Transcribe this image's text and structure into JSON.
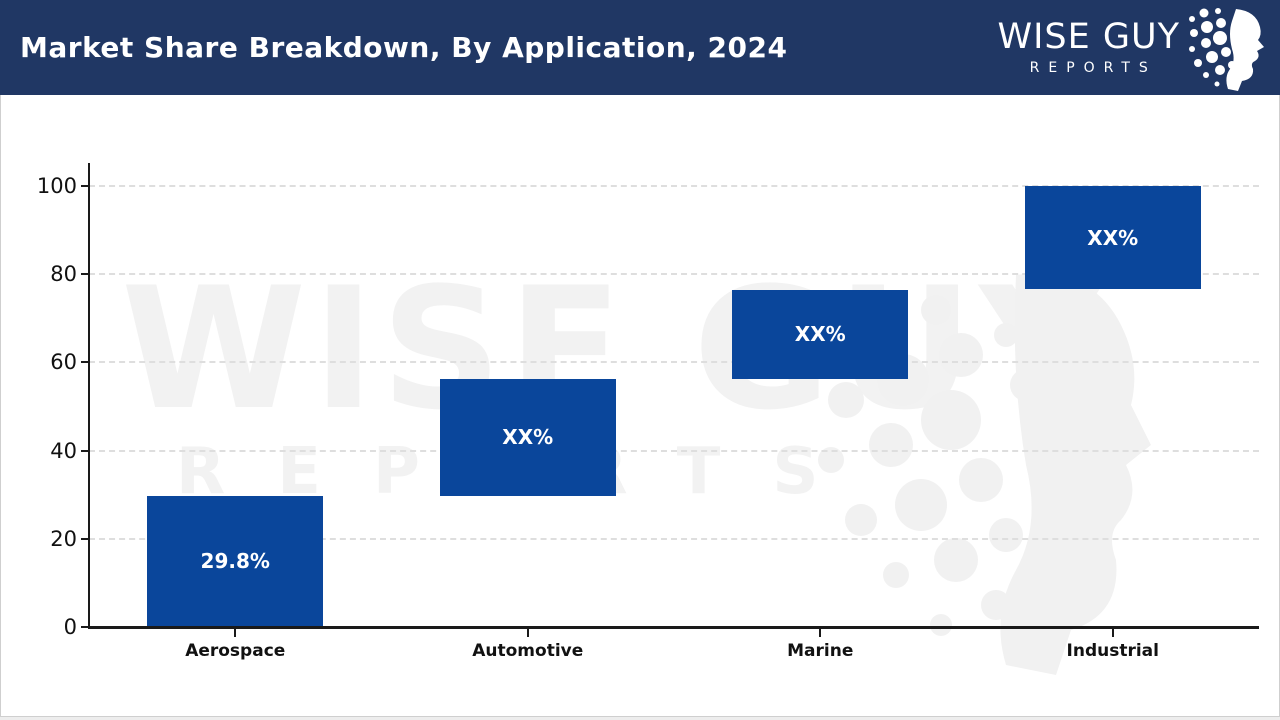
{
  "header": {
    "title": "Market Share Breakdown, By Application, 2024",
    "logo": {
      "wordmark": "WISE GUY",
      "subtext": "REPORTS"
    }
  },
  "chart_data": {
    "type": "bar",
    "variant": "waterfall",
    "categories": [
      "Aerospace",
      "Automotive",
      "Marine",
      "Industrial"
    ],
    "segments": [
      {
        "category": "Aerospace",
        "start": 0,
        "end": 29.8,
        "label": "29.8%"
      },
      {
        "category": "Automotive",
        "start": 29.8,
        "end": 56.2,
        "label": "XX%"
      },
      {
        "category": "Marine",
        "start": 56.3,
        "end": 76.5,
        "label": "XX%"
      },
      {
        "category": "Industrial",
        "start": 76.6,
        "end": 100,
        "label": "XX%"
      }
    ],
    "yticks": [
      0,
      20,
      40,
      60,
      80,
      100
    ],
    "ylim": [
      0,
      105
    ],
    "xlabel": "",
    "ylabel": "",
    "grid": "horizontal-dashed",
    "legend": "none",
    "bar_color": "#0a469b",
    "bar_label_color": "#ffffff"
  },
  "watermark": {
    "line1": "WISE GUY",
    "line2": "REPORTS"
  },
  "colors": {
    "header_bg": "#203764",
    "header_text": "#ffffff",
    "card_bg": "#ffffff",
    "page_bg": "#ededed",
    "grid": "#dedede",
    "axis": "#1a1a1a",
    "tick_label": "#111111"
  }
}
